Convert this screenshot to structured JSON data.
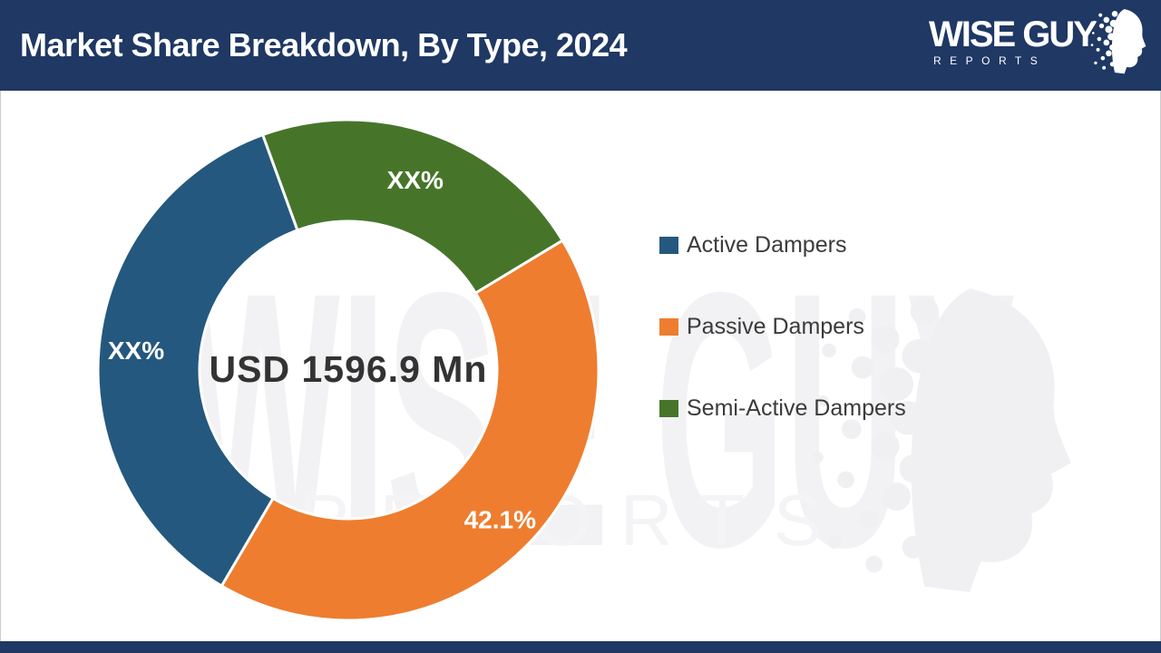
{
  "header": {
    "title": "Market Share Breakdown, By Type, 2024",
    "bg_color": "#1f3864",
    "logo": {
      "brand": "WISE GUY",
      "sub": "REPORTS"
    }
  },
  "watermark": {
    "brand": "WISE GUY",
    "sub": "REPORTS"
  },
  "chart_data": {
    "type": "donut",
    "title": "Market Share Breakdown, By Type, 2024",
    "center_label": "USD 1596.9 Mn",
    "start_angle_deg": -20,
    "outer_radius": 276,
    "inner_radius": 164,
    "separator_color": "#ffffff",
    "segments": [
      {
        "name": "Semi-Active Dampers",
        "label": "XX%",
        "fraction": 0.219,
        "color": "#46752a",
        "label_radius": 222
      },
      {
        "name": "Passive Dampers",
        "label": "42.1%",
        "fraction": 0.421,
        "color": "#ee7d2f",
        "label_radius": 235
      },
      {
        "name": "Active Dampers",
        "label": "XX%",
        "fraction": 0.36,
        "color": "#24587e",
        "label_radius": 235
      }
    ]
  },
  "legend": {
    "items": [
      {
        "label": "Active Dampers",
        "color": "#24587e"
      },
      {
        "label": "Passive Dampers",
        "color": "#ee7d2f"
      },
      {
        "label": "Semi-Active Dampers",
        "color": "#46752a"
      }
    ]
  },
  "footer": {
    "bg_color": "#1f3864"
  }
}
